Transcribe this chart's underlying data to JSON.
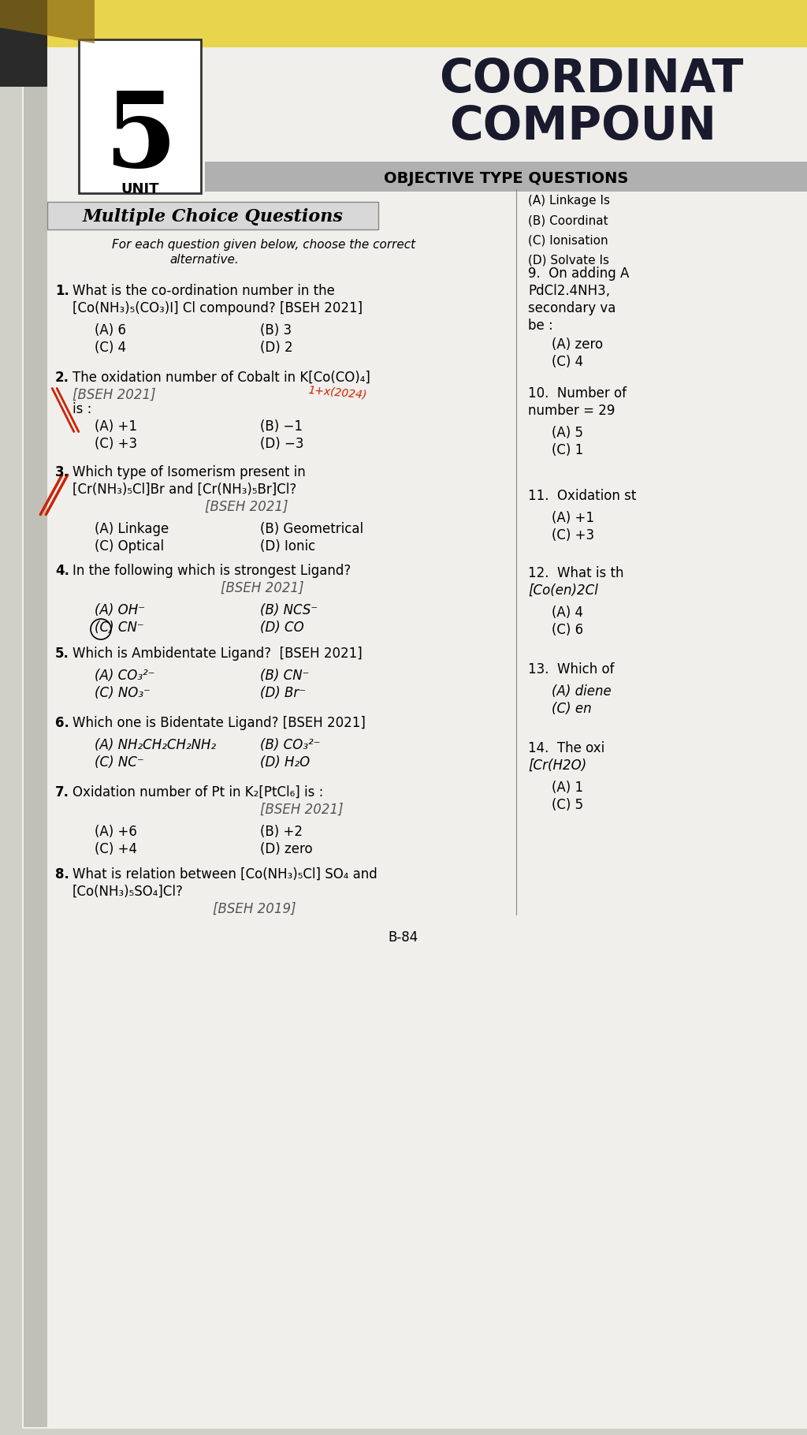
{
  "bg_color": "#e8e8e8",
  "page_bg": "#f0efeb",
  "unit_number": "5",
  "unit_text": "UNIT",
  "header_title1": "COORDINAT",
  "header_title2": "COMPOUN",
  "header_sub": "OBJECTIVE TYPE QUESTIONS",
  "section_title": "Multiple Choice Questions",
  "section_subtitle": "For each question given below, choose the correct",
  "section_subtitle2": "alternative.",
  "right_col_items": [
    "(A) Linkage Is",
    "(B) Coordinat",
    "(C) Ionisation",
    "(D) Solvate Is"
  ],
  "q9_text": "9.  On adding A",
  "q9_line2": "PdCl2.4NH3,",
  "q9_line3": "secondary va",
  "q9_line4": "be :",
  "q9_A": "(A) zero",
  "q9_C": "(C) 4",
  "q10_text": "10.  Number of",
  "q10_line2": "number = 29",
  "q10_A": "(A) 5",
  "q10_C": "(C) 1",
  "q11_text": "11.  Oxidation st",
  "q11_A": "(A) +1",
  "q11_C": "(C) +3",
  "q12_text": "12.  What is th",
  "q12_line2": "[Co(en)2Cl",
  "q12_A": "(A) 4",
  "q12_C": "(C) 6",
  "q13_text": "13.  Which of",
  "q13_A": "(A) diene",
  "q13_C": "(C) en",
  "q14_text": "14.  The oxi",
  "q14_line2": "[Cr(H2O)",
  "q14_A": "(A) 1",
  "q14_C": "(C) 5",
  "footer": "B-84"
}
